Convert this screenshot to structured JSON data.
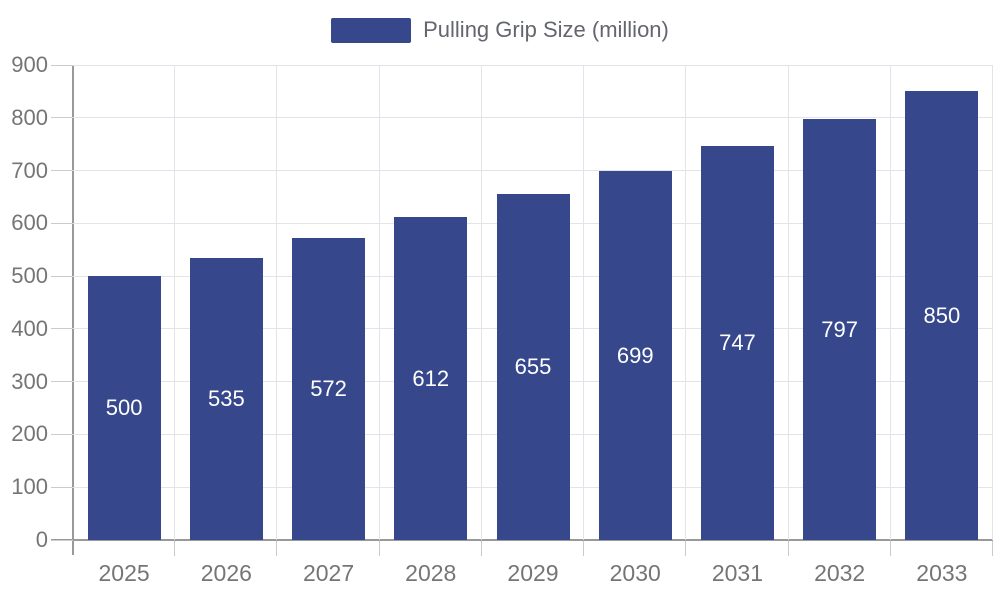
{
  "chart_data": {
    "type": "bar",
    "title": "",
    "xlabel": "",
    "ylabel": "",
    "series_name": "Pulling Grip Size (million)",
    "categories": [
      "2025",
      "2026",
      "2027",
      "2028",
      "2029",
      "2030",
      "2031",
      "2032",
      "2033"
    ],
    "values": [
      500,
      535,
      572,
      612,
      655,
      699,
      747,
      797,
      850
    ],
    "value_labels": [
      "500",
      "535",
      "572",
      "612",
      "655",
      "699",
      "747",
      "797",
      "850"
    ],
    "ylim": [
      0,
      900
    ],
    "ytick_labels": [
      "0",
      "100",
      "200",
      "300",
      "400",
      "500",
      "600",
      "700",
      "800",
      "900"
    ],
    "grid": true,
    "legend_position": "top",
    "colors": {
      "bar": "#36478B",
      "bar_value_text": "#ffffff",
      "axis_line": "#999999",
      "tick": "#c9cbd0",
      "gridline": "#e2e4e9",
      "axis_text": "#757575",
      "legend_text": "#63666c",
      "background": "#ffffff"
    }
  }
}
